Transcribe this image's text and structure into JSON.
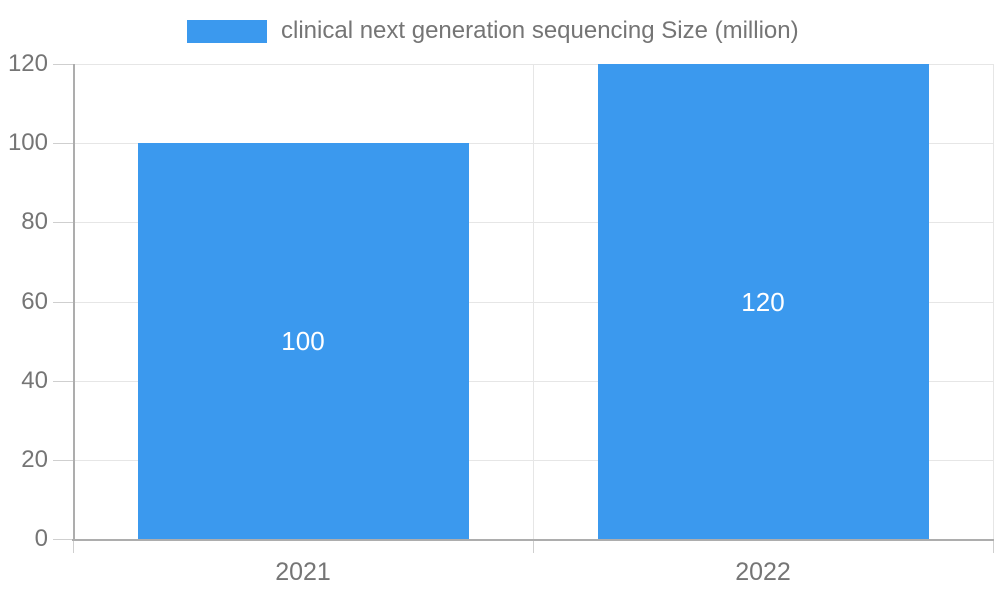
{
  "chart_data": {
    "type": "bar",
    "title": "",
    "legend": {
      "label": "clinical next generation sequencing Size (million)",
      "position": "top"
    },
    "categories": [
      "2021",
      "2022"
    ],
    "series": [
      {
        "name": "clinical next generation sequencing Size (million)",
        "color": "#3b99ee",
        "values": [
          100,
          120
        ],
        "data_labels": [
          "100",
          "120"
        ]
      }
    ],
    "xlabel": "",
    "ylabel": "",
    "ylim": [
      0,
      120
    ],
    "ytick_interval": 20,
    "yticks": [
      "0",
      "20",
      "40",
      "60",
      "80",
      "100",
      "120"
    ],
    "grid": true
  },
  "colors": {
    "bar": "#3b99ee",
    "axis_text": "#757575",
    "axis_line": "#adadad",
    "tick_line": "#cfcfcf",
    "gridline": "#e6e6e6",
    "value_label": "#ffffff",
    "background": "#ffffff"
  }
}
